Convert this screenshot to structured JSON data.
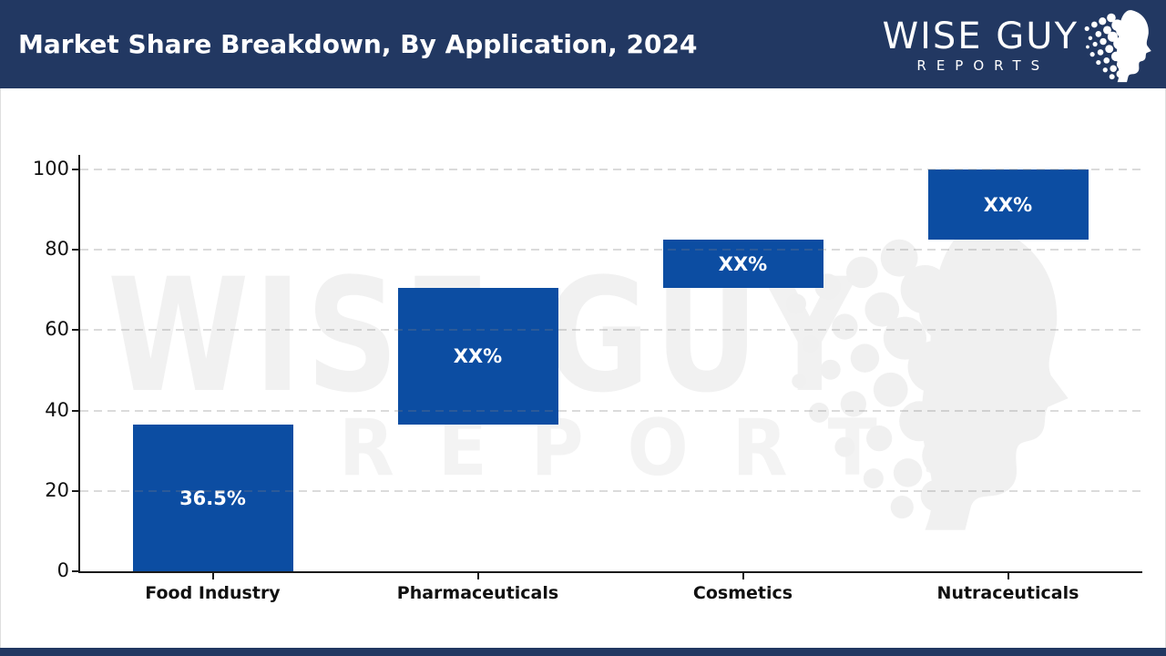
{
  "header": {
    "title": "Market Share Breakdown, By Application, 2024",
    "logo": {
      "line1": "WISE GUY",
      "line2": "REPORTS"
    }
  },
  "watermark": {
    "line1": "WISE GUY",
    "line2": "REPORTS"
  },
  "chart_data": {
    "type": "bar",
    "subtype": "waterfall",
    "title": "Market Share Breakdown, By Application, 2024",
    "categories": [
      "Food Industry",
      "Pharmaceuticals",
      "Cosmetics",
      "Nutraceuticals"
    ],
    "segments": [
      {
        "category": "Food Industry",
        "start": 0,
        "end": 36.5,
        "label": "36.5%"
      },
      {
        "category": "Pharmaceuticals",
        "start": 36.5,
        "end": 70.5,
        "label": "XX%"
      },
      {
        "category": "Cosmetics",
        "start": 70.5,
        "end": 82.5,
        "label": "XX%"
      },
      {
        "category": "Nutraceuticals",
        "start": 82.5,
        "end": 100,
        "label": "XX%"
      }
    ],
    "values": [
      36.5,
      34,
      12,
      17.5
    ],
    "yticks": [
      0,
      20,
      40,
      60,
      80,
      100
    ],
    "ylim": [
      0,
      104
    ],
    "xlabel": "",
    "ylabel": "",
    "grid": "horizontal-dashed",
    "legend": "none",
    "bar_color": "#0c4da2",
    "bar_label_color": "#ffffff"
  },
  "colors": {
    "header_bg": "#223862",
    "footer_bg": "#223862",
    "bar": "#0c4da2",
    "axis": "#1a1a1a",
    "tick_text": "#111111",
    "watermark": "#f1f1f1"
  }
}
